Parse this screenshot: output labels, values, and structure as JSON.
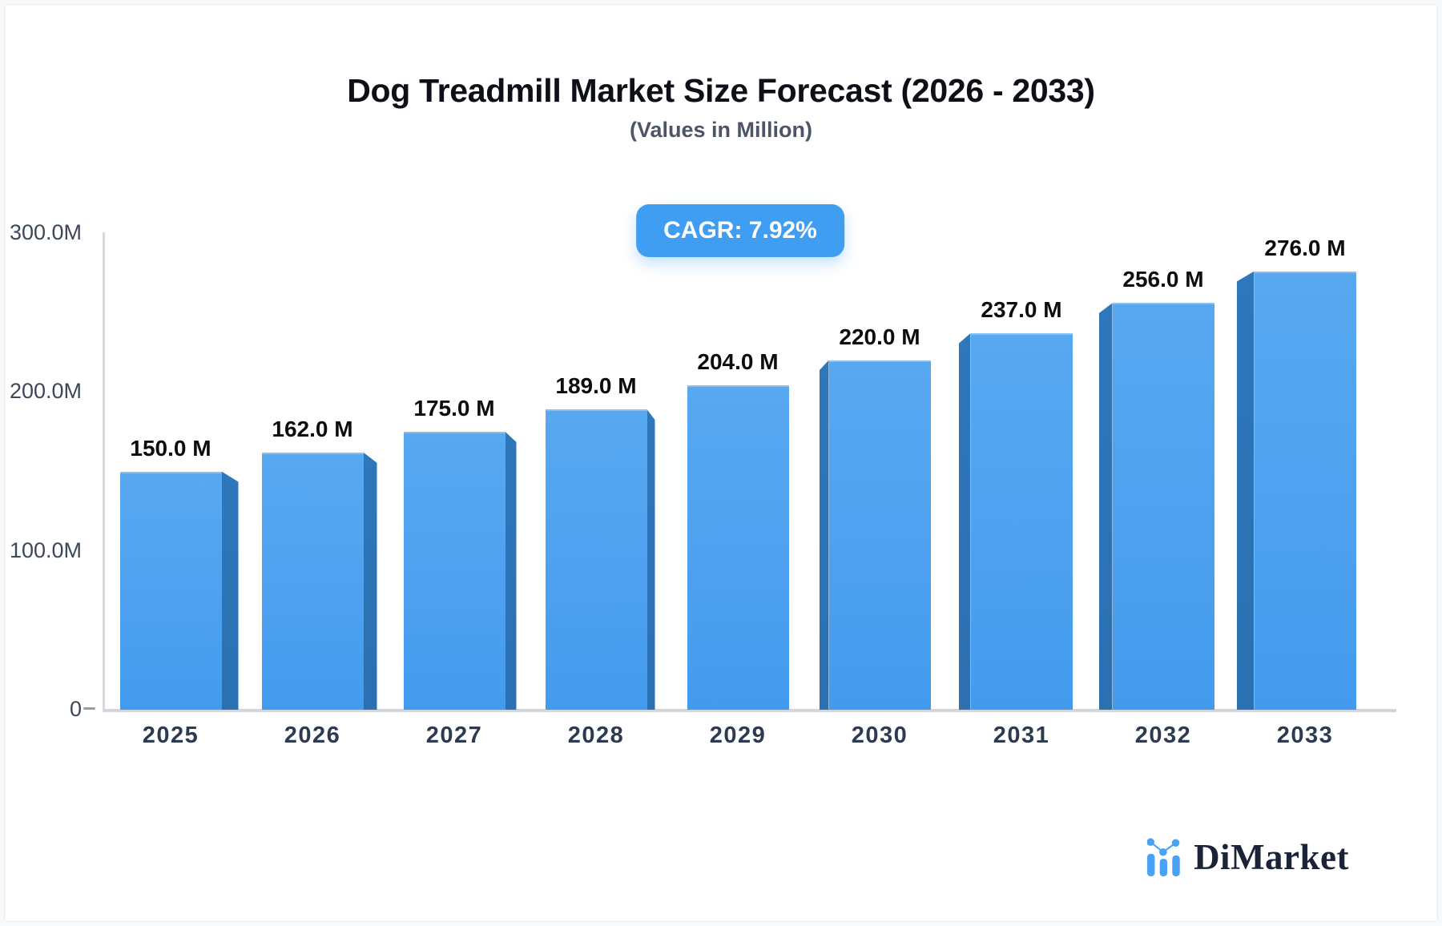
{
  "chart_data": {
    "type": "bar",
    "title": "Dog Treadmill Market Size Forecast (2026 - 2033)",
    "subtitle": "(Values in Million)",
    "badge": "CAGR: 7.92%",
    "categories": [
      "2025",
      "2026",
      "2027",
      "2028",
      "2029",
      "2030",
      "2031",
      "2032",
      "2033"
    ],
    "values": [
      150,
      162,
      175,
      189,
      204,
      220,
      237,
      256,
      276
    ],
    "value_labels": [
      "150.0 M",
      "162.0 M",
      "175.0 M",
      "189.0 M",
      "204.0 M",
      "220.0 M",
      "237.0 M",
      "256.0 M",
      "276.0 M"
    ],
    "xlabel": "",
    "ylabel": "",
    "ylim": [
      0,
      300
    ],
    "y_ticks": [
      {
        "label": "300.0M",
        "value": 300
      },
      {
        "label": "200.0M",
        "value": 200
      },
      {
        "label": "100.0M",
        "value": 100
      },
      {
        "label": "0",
        "value": 0
      }
    ],
    "grid": false,
    "legend": false,
    "colors": {
      "bar_top": "#58a8f0",
      "bar_bottom": "#449bee",
      "bar_side": "#2d77bb",
      "badge": "#3f9df2",
      "axis": "#d6d9de"
    }
  },
  "logo": {
    "text": "DiMarket",
    "icon": "bar-line-chart-icon",
    "text_color": "#1a2338",
    "accent_color": "#4aa2f4"
  }
}
